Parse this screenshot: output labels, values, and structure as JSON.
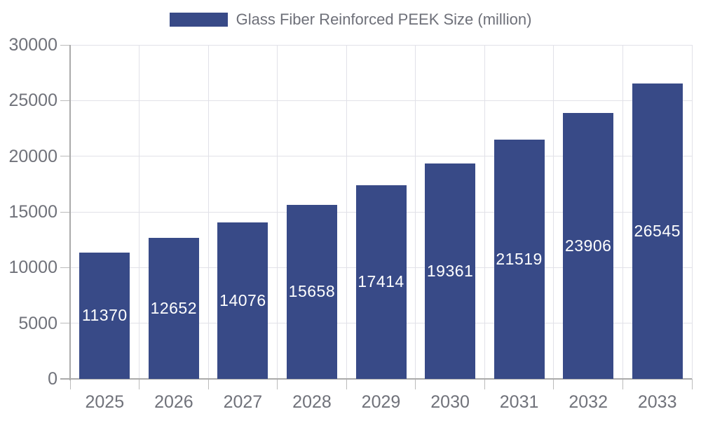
{
  "legend": {
    "label": "Glass Fiber Reinforced PEEK Size (million)"
  },
  "chart_data": {
    "type": "bar",
    "title": "Glass Fiber Reinforced PEEK Size (million)",
    "categories": [
      "2025",
      "2026",
      "2027",
      "2028",
      "2029",
      "2030",
      "2031",
      "2032",
      "2033"
    ],
    "series": [
      {
        "name": "Glass Fiber Reinforced PEEK Size (million)",
        "values": [
          11370,
          12652,
          14076,
          15658,
          17414,
          19361,
          21519,
          23906,
          26545
        ]
      }
    ],
    "value_labels_shown": true,
    "xlabel": "",
    "ylabel": "",
    "ylim": [
      0,
      30000
    ],
    "yticks": [
      0,
      5000,
      10000,
      15000,
      20000,
      25000,
      30000
    ],
    "grid": true,
    "legend_position": "top-center",
    "colors": {
      "bar": "#384A87",
      "value_label": "#FFFFFF",
      "axis_line": "#AAAAAA",
      "tick": "#BBBBBB",
      "gridline": "#E1E1E8",
      "axis_text": "#70727A",
      "legend_text": "#6E7079",
      "background": "#FFFFFF"
    }
  }
}
